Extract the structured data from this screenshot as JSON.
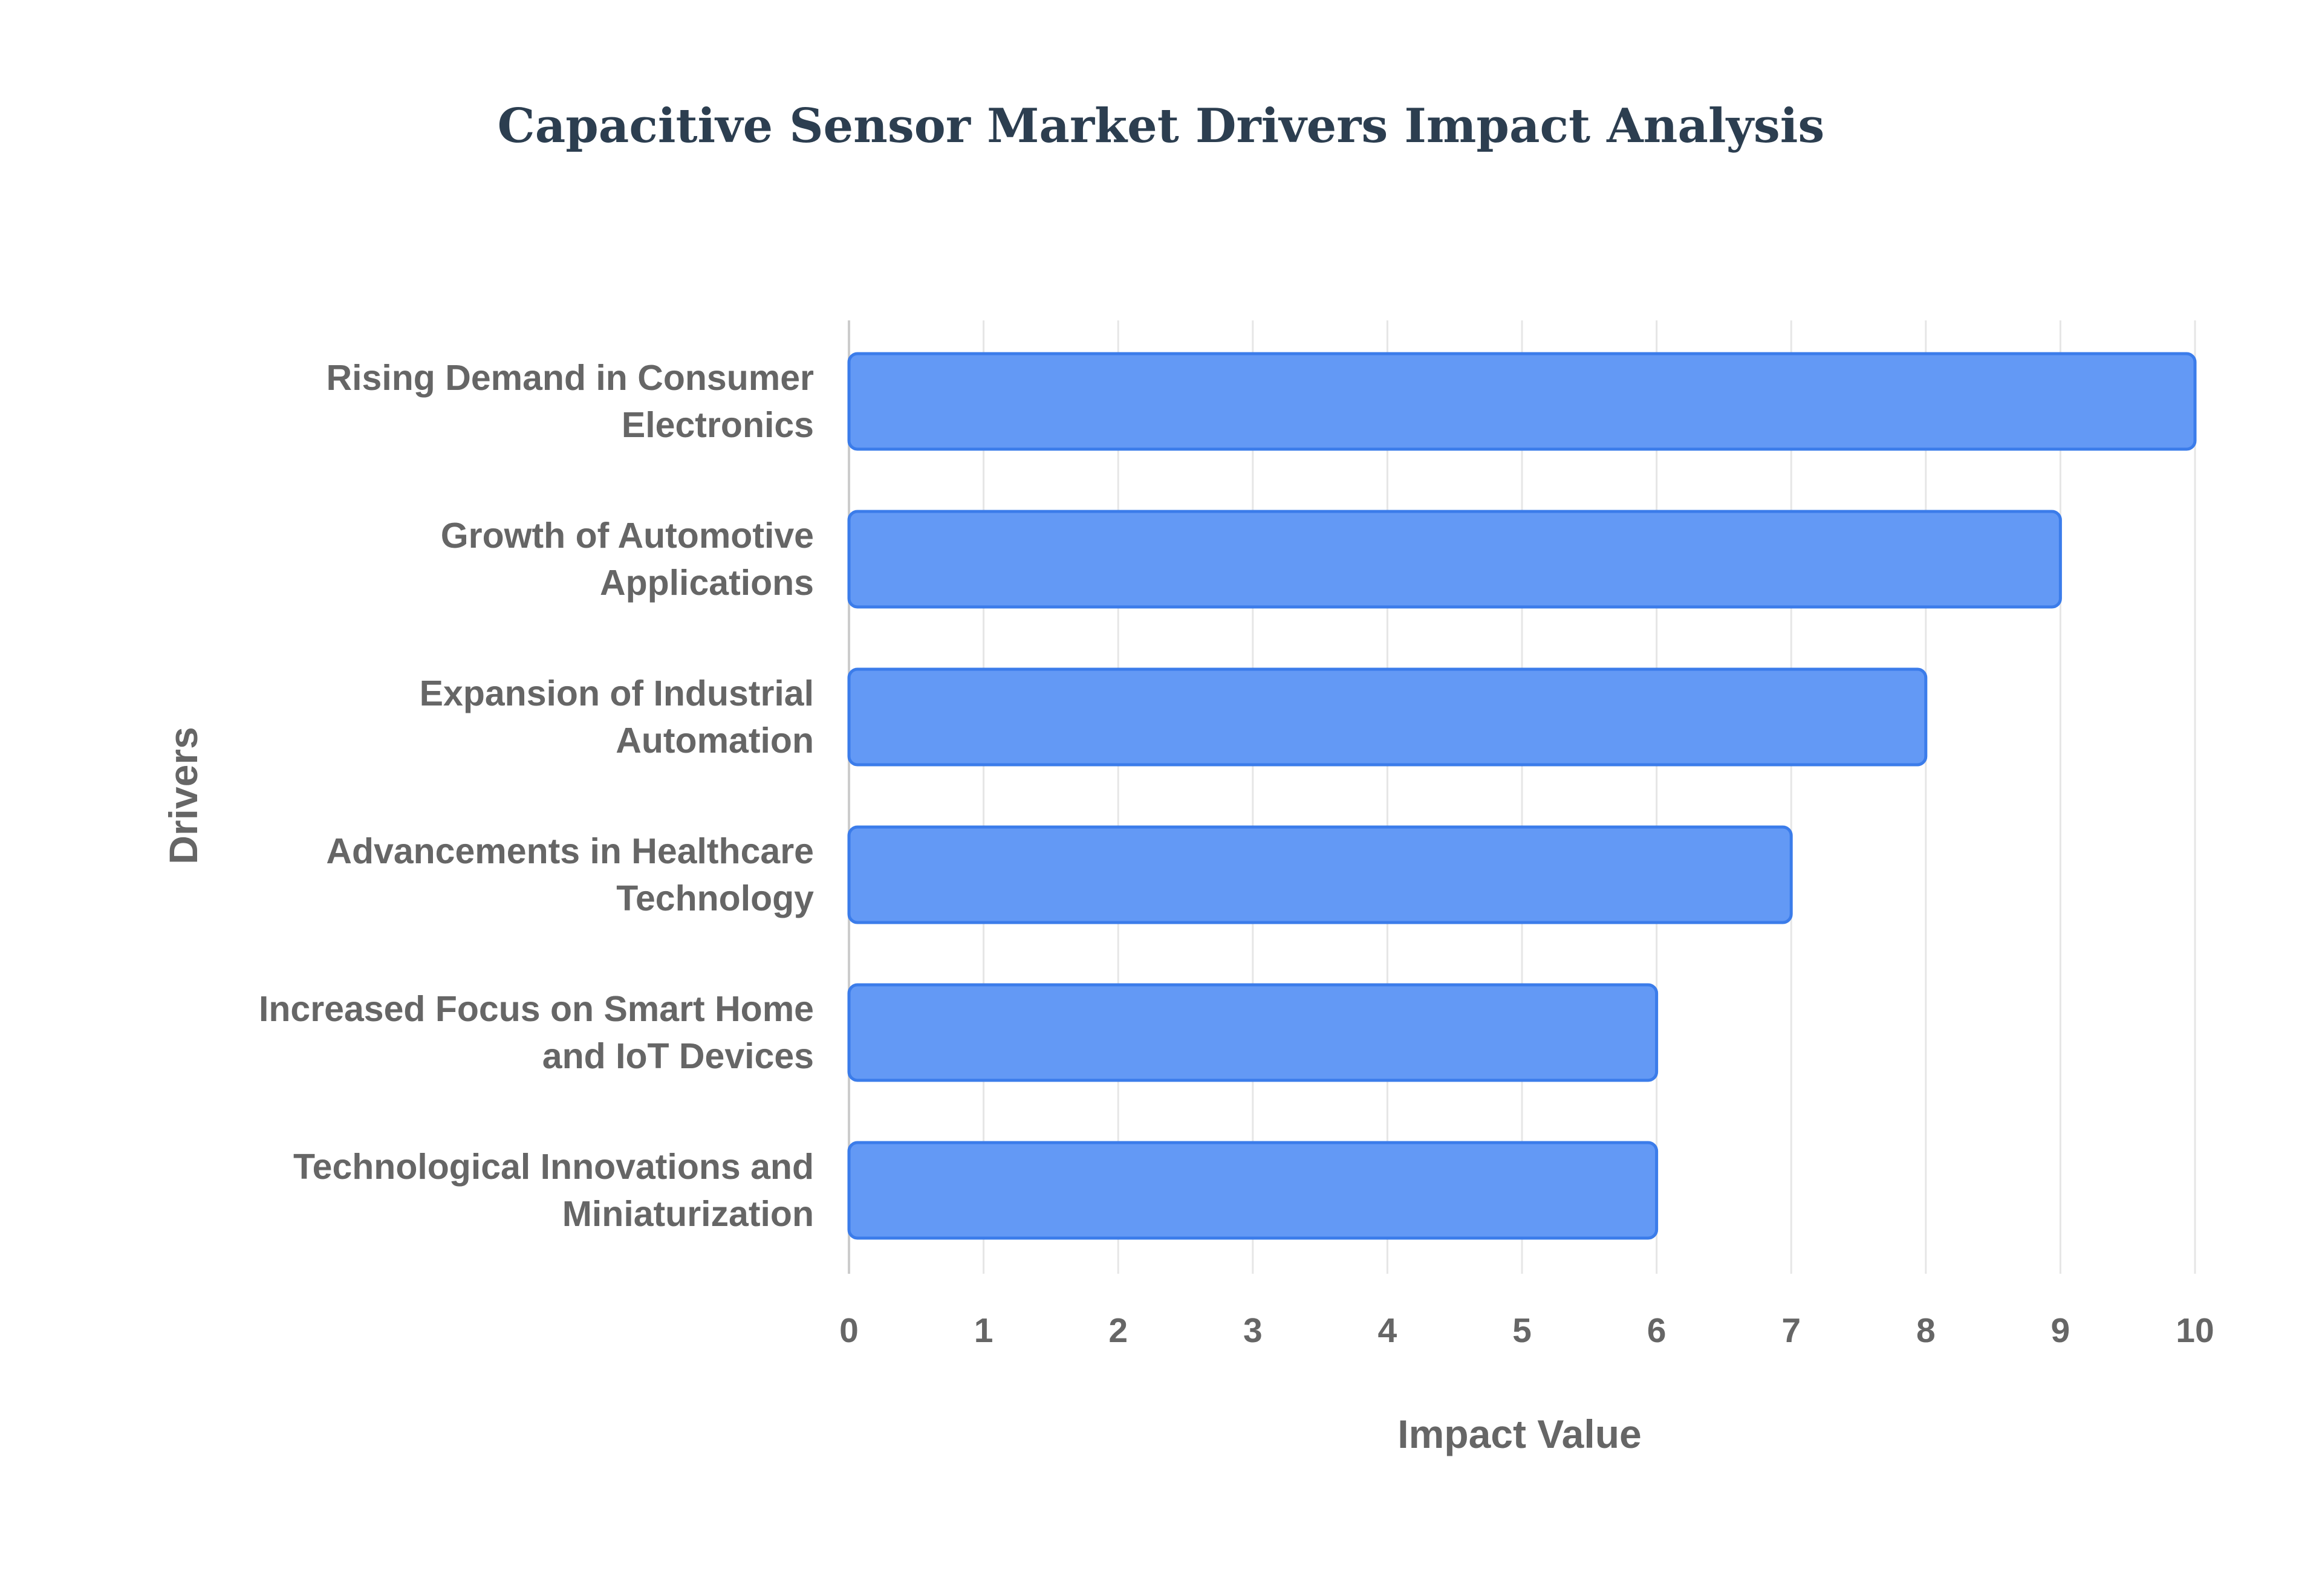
{
  "chart_data": {
    "type": "bar",
    "orientation": "horizontal",
    "title": "Capacitive Sensor Market Drivers Impact Analysis",
    "xlabel": "Impact Value",
    "ylabel": "Drivers",
    "categories": [
      "Rising Demand in Consumer Electronics",
      "Growth of Automotive Applications",
      "Expansion of Industrial Automation",
      "Advancements in Healthcare Technology",
      "Increased Focus on Smart Home and IoT Devices",
      "Technological Innovations and Miniaturization"
    ],
    "category_lines": [
      [
        "Rising Demand in Consumer",
        "Electronics"
      ],
      [
        "Growth of Automotive",
        "Applications"
      ],
      [
        "Expansion of Industrial",
        "Automation"
      ],
      [
        "Advancements in Healthcare",
        "Technology"
      ],
      [
        "Increased Focus on Smart Home",
        "and IoT Devices"
      ],
      [
        "Technological Innovations and",
        "Miniaturization"
      ]
    ],
    "values": [
      10,
      9,
      8,
      7,
      6,
      6
    ],
    "xlim": [
      0,
      10
    ],
    "xticks": [
      "0",
      "1",
      "2",
      "3",
      "4",
      "5",
      "6",
      "7",
      "8",
      "9",
      "10"
    ],
    "grid": true,
    "legend": "none",
    "colors": {
      "bar_fill": "#6399f5",
      "bar_stroke": "#3b7cea",
      "title": "#2c3e50",
      "text": "#666666",
      "grid": "#e6e6e6"
    }
  }
}
